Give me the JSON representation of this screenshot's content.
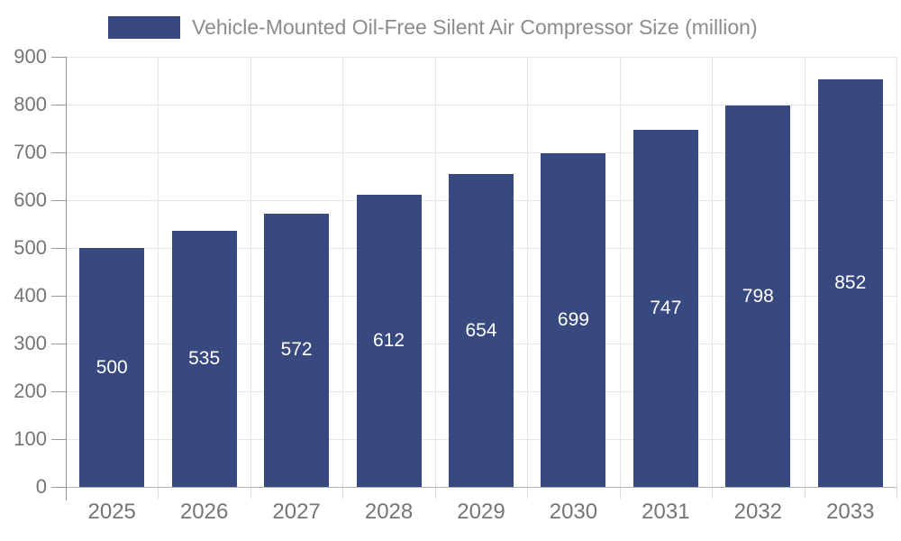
{
  "legend": {
    "label": "Vehicle-Mounted Oil-Free Silent Air Compressor Size (million)"
  },
  "chart_data": {
    "type": "bar",
    "title": "Vehicle-Mounted Oil-Free Silent Air Compressor Size (million)",
    "xlabel": "",
    "ylabel": "",
    "categories": [
      "2025",
      "2026",
      "2027",
      "2028",
      "2029",
      "2030",
      "2031",
      "2032",
      "2033"
    ],
    "values": [
      500,
      535,
      572,
      612,
      654,
      699,
      747,
      798,
      852
    ],
    "bar_value_labels": [
      "500",
      "535",
      "572",
      "612",
      "654",
      "699",
      "747",
      "798",
      "852"
    ],
    "ylim": [
      0,
      900
    ],
    "yticks": [
      0,
      100,
      200,
      300,
      400,
      500,
      600,
      700,
      800,
      900
    ],
    "grid": true,
    "legend_position": "top",
    "colors": {
      "bar": "#38497f",
      "bar_label_text": "#ffffff",
      "legend_text": "#8c8c8c",
      "axis_text": "#757575",
      "grid_line": "#e6e6e6",
      "y_axis_line": "#8c8c8c",
      "x_axis_line": "#b3b3b3",
      "y_tick_mark": "#9b9b9b",
      "x_tick_mark": "#d9d9d9",
      "background": "#ffffff"
    }
  }
}
